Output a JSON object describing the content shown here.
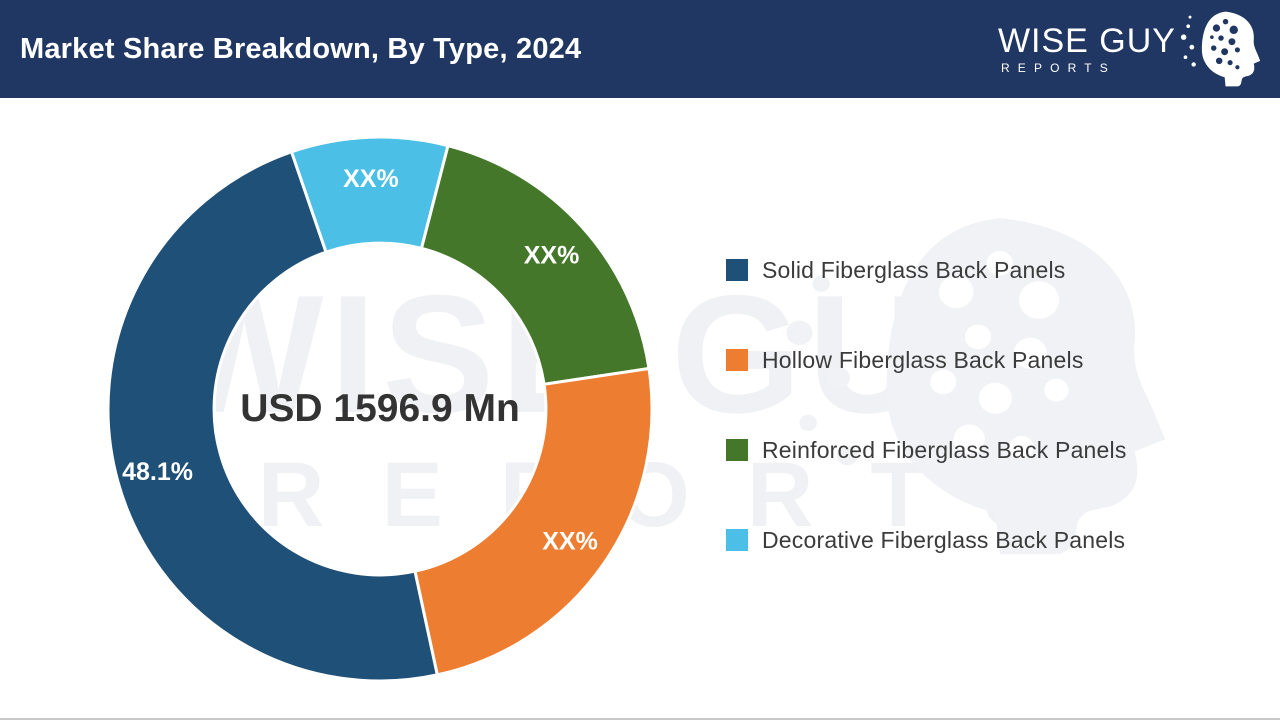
{
  "header": {
    "title": "Market Share Breakdown, By Type, 2024",
    "bg_color": "#213763",
    "logo": {
      "wordmark": "WISE GUY",
      "subtitle": "REPORTS"
    }
  },
  "watermark": {
    "wordmark": "WISE GUY",
    "subtitle": "REPORTS"
  },
  "chart_data": {
    "type": "pie",
    "subtype": "donut",
    "title": "Market Share Breakdown, By Type, 2024",
    "center_label": "USD 1596.9 Mn",
    "donut_hole_ratio": 0.61,
    "start_angle_deg": 109,
    "direction": "clockwise",
    "legend_position": "right",
    "segments": [
      {
        "name": "Decorative Fiberglass Back Panels",
        "display_label": "XX%",
        "share_pct_est": 9.3,
        "color": "#4bbfe6"
      },
      {
        "name": "Reinforced Fiberglass Back Panels",
        "display_label": "XX%",
        "share_pct_est": 18.6,
        "color": "#44772a"
      },
      {
        "name": "Hollow Fiberglass Back Panels",
        "display_label": "XX%",
        "share_pct_est": 24.0,
        "color": "#ed7d31"
      },
      {
        "name": "Solid Fiberglass Back Panels",
        "display_label": "48.1%",
        "share_pct_est": 48.1,
        "color": "#1f5078"
      }
    ]
  },
  "legend": {
    "items": [
      {
        "label": "Solid Fiberglass Back Panels",
        "color": "#1f5078"
      },
      {
        "label": "Hollow Fiberglass Back Panels",
        "color": "#ed7d31"
      },
      {
        "label": "Reinforced Fiberglass Back Panels",
        "color": "#44772a"
      },
      {
        "label": "Decorative Fiberglass Back Panels",
        "color": "#4bbfe6"
      }
    ]
  }
}
